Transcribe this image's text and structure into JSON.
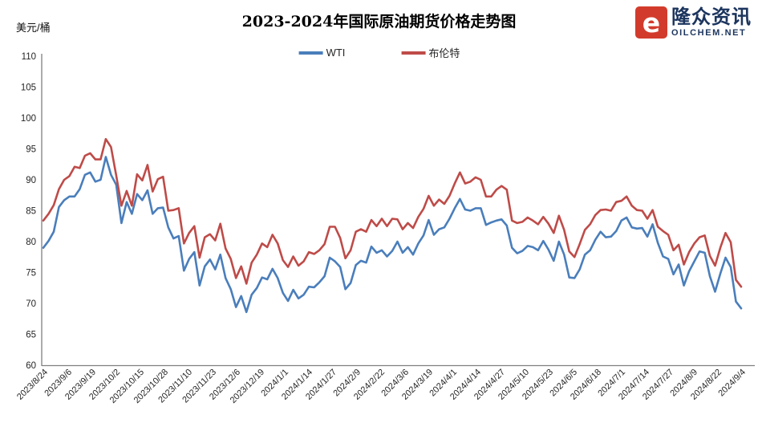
{
  "header": {
    "unit_label": "美元/桶",
    "title": "2023-2024年国际原油期货价格走势图",
    "logo": {
      "name_cn": "隆众资讯",
      "domain": "OILCHEM.NET",
      "mark_glyph": "e",
      "red": "#d23b2c",
      "navy": "#1c355e"
    }
  },
  "chart_data": {
    "type": "line",
    "title": "2023-2024年国际原油期货价格走势图",
    "ylabel": "美元/桶",
    "ylim": [
      60,
      110
    ],
    "yticks": [
      60,
      65,
      70,
      75,
      80,
      85,
      90,
      95,
      100,
      105,
      110
    ],
    "grid": false,
    "legend_position": "top-center",
    "axis_color": "#808080",
    "x_labels": [
      "2023/8/24",
      "2023/9/6",
      "2023/9/19",
      "2023/10/2",
      "2023/10/15",
      "2023/10/28",
      "2023/11/10",
      "2023/11/23",
      "2023/12/6",
      "2023/12/19",
      "2024/1/1",
      "2024/1/14",
      "2024/1/27",
      "2024/2/9",
      "2024/2/22",
      "2024/3/6",
      "2024/3/19",
      "2024/4/1",
      "2024/4/14",
      "2024/4/27",
      "2024/5/10",
      "2024/5/23",
      "2024/6/5",
      "2024/6/18",
      "2024/7/1",
      "2024/7/14",
      "2024/7/27",
      "2024/8/9",
      "2024/8/22",
      "2024/9/4"
    ],
    "x_range_note": "daily prices from 2023/8/24 to 2024/9/4, sampled ~every 2 trading days",
    "series": [
      {
        "name": "WTI",
        "color": "#4a7ebb",
        "values": [
          79.0,
          80.1,
          81.6,
          85.6,
          86.7,
          87.3,
          87.3,
          88.5,
          90.8,
          91.2,
          89.7,
          90.0,
          93.7,
          90.8,
          89.2,
          83.0,
          86.4,
          84.5,
          87.7,
          86.7,
          88.3,
          84.5,
          85.4,
          85.5,
          82.3,
          80.5,
          80.9,
          75.3,
          77.2,
          78.3,
          72.9,
          76.0,
          77.1,
          75.5,
          77.9,
          74.1,
          72.3,
          69.4,
          71.2,
          68.6,
          71.4,
          72.5,
          74.2,
          73.9,
          75.6,
          74.1,
          71.7,
          70.4,
          72.2,
          70.8,
          71.4,
          72.7,
          72.6,
          73.4,
          74.4,
          77.4,
          76.8,
          75.9,
          72.3,
          73.3,
          76.2,
          76.9,
          76.6,
          79.2,
          78.2,
          78.6,
          77.6,
          78.5,
          80.0,
          78.2,
          79.1,
          77.9,
          79.7,
          81.0,
          83.5,
          81.1,
          82.0,
          82.3,
          83.7,
          85.4,
          86.9,
          85.2,
          85.0,
          85.4,
          85.4,
          82.7,
          83.1,
          83.4,
          83.6,
          82.6,
          79.0,
          78.1,
          78.5,
          79.3,
          79.1,
          78.6,
          80.1,
          78.7,
          76.9,
          80.0,
          77.9,
          74.2,
          74.1,
          75.5,
          77.9,
          78.6,
          80.3,
          81.6,
          80.7,
          80.8,
          81.7,
          83.4,
          83.9,
          82.3,
          82.1,
          82.2,
          80.8,
          82.8,
          79.8,
          77.6,
          77.2,
          74.7,
          76.3,
          72.9,
          75.2,
          76.8,
          78.4,
          78.2,
          74.4,
          71.9,
          74.8,
          77.4,
          75.9,
          70.3,
          69.2
        ]
      },
      {
        "name": "布伦特",
        "color": "#be4b48",
        "values": [
          83.4,
          84.5,
          85.9,
          88.5,
          90.0,
          90.6,
          92.1,
          91.9,
          93.9,
          94.3,
          93.3,
          93.3,
          96.6,
          95.3,
          90.7,
          85.8,
          88.2,
          85.8,
          90.9,
          89.9,
          92.4,
          88.1,
          90.1,
          90.5,
          85.0,
          85.1,
          85.4,
          79.7,
          81.4,
          82.5,
          77.4,
          80.7,
          81.2,
          80.2,
          82.9,
          78.9,
          77.2,
          74.1,
          76.0,
          73.2,
          76.6,
          77.9,
          79.7,
          79.1,
          81.1,
          79.7,
          77.0,
          75.9,
          77.6,
          76.1,
          76.8,
          78.3,
          78.0,
          78.6,
          79.6,
          82.4,
          82.4,
          80.6,
          77.3,
          78.6,
          81.6,
          82.0,
          81.6,
          83.5,
          82.5,
          83.7,
          82.5,
          83.7,
          83.6,
          82.0,
          83.0,
          82.2,
          84.0,
          85.3,
          87.4,
          85.8,
          86.8,
          86.1,
          87.4,
          89.4,
          91.2,
          89.4,
          89.7,
          90.4,
          90.0,
          87.3,
          87.3,
          88.4,
          89.0,
          88.4,
          83.4,
          83.0,
          83.2,
          83.9,
          83.4,
          82.8,
          84.0,
          82.9,
          81.4,
          84.2,
          81.9,
          78.4,
          77.5,
          79.6,
          81.9,
          82.8,
          84.3,
          85.1,
          85.2,
          85.0,
          86.4,
          86.6,
          87.3,
          85.8,
          85.1,
          85.0,
          83.7,
          85.1,
          82.4,
          81.7,
          81.1,
          78.6,
          79.5,
          76.3,
          78.3,
          79.7,
          80.7,
          81.0,
          77.7,
          76.1,
          79.0,
          81.4,
          79.9,
          73.8,
          72.7
        ]
      }
    ]
  }
}
